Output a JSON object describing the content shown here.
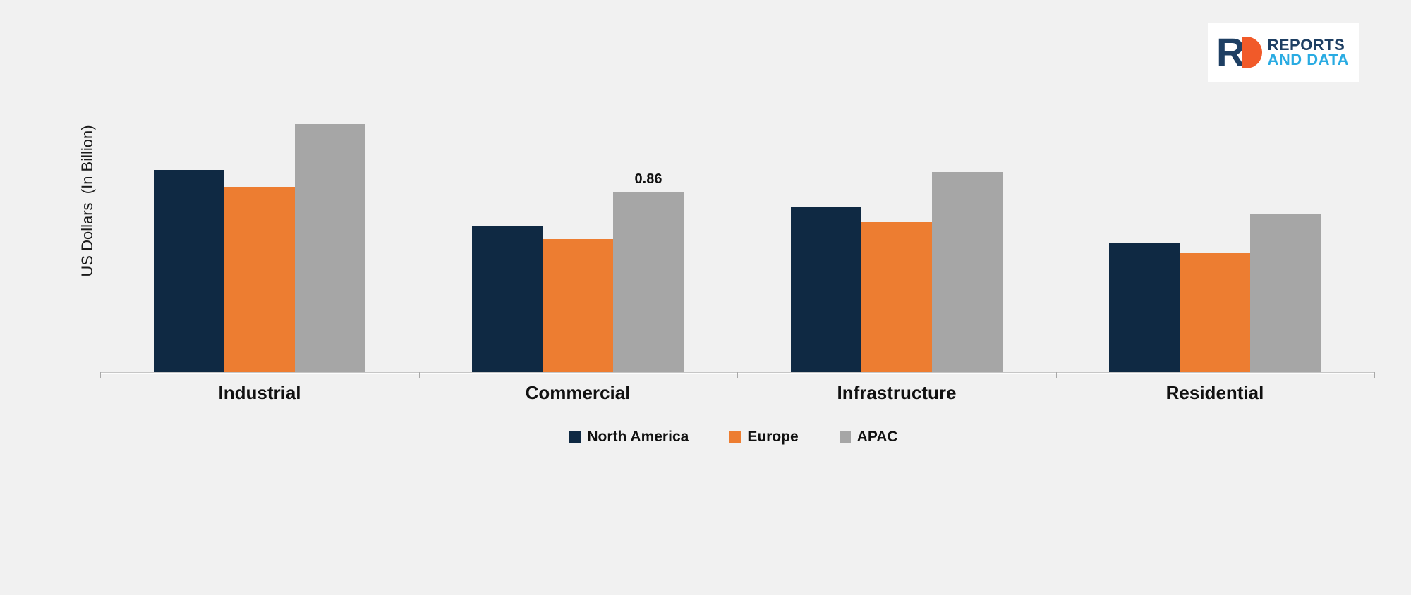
{
  "chart_data": {
    "type": "bar",
    "title": "",
    "xlabel": "",
    "ylabel": "US Dollars  (In Billion)",
    "categories": [
      "Industrial",
      "Commercial",
      "Infrastructure",
      "Residential"
    ],
    "series": [
      {
        "name": "North America",
        "color": "#0f2943",
        "values": [
          0.97,
          0.7,
          0.79,
          0.62
        ]
      },
      {
        "name": "Europe",
        "color": "#ed7d31",
        "values": [
          0.89,
          0.64,
          0.72,
          0.57
        ]
      },
      {
        "name": "APAC",
        "color": "#a6a6a6",
        "values": [
          1.19,
          0.86,
          0.96,
          0.76
        ]
      }
    ],
    "annotations": [
      {
        "series": "APAC",
        "category": "Commercial",
        "text": "0.86"
      }
    ],
    "ylim": [
      0,
      1.3
    ],
    "grid": false,
    "legend_position": "bottom"
  },
  "logo": {
    "mark_r": "R",
    "line1": "REPORTS",
    "line2": "AND DATA",
    "navy": "#1e3f63",
    "orange": "#f15a29",
    "blue": "#29abe2"
  },
  "colors": {
    "background": "#f1f1f1",
    "axis_line": "#c6c6c6",
    "tick": "#a8a8a8",
    "text": "#1a1a1a"
  }
}
